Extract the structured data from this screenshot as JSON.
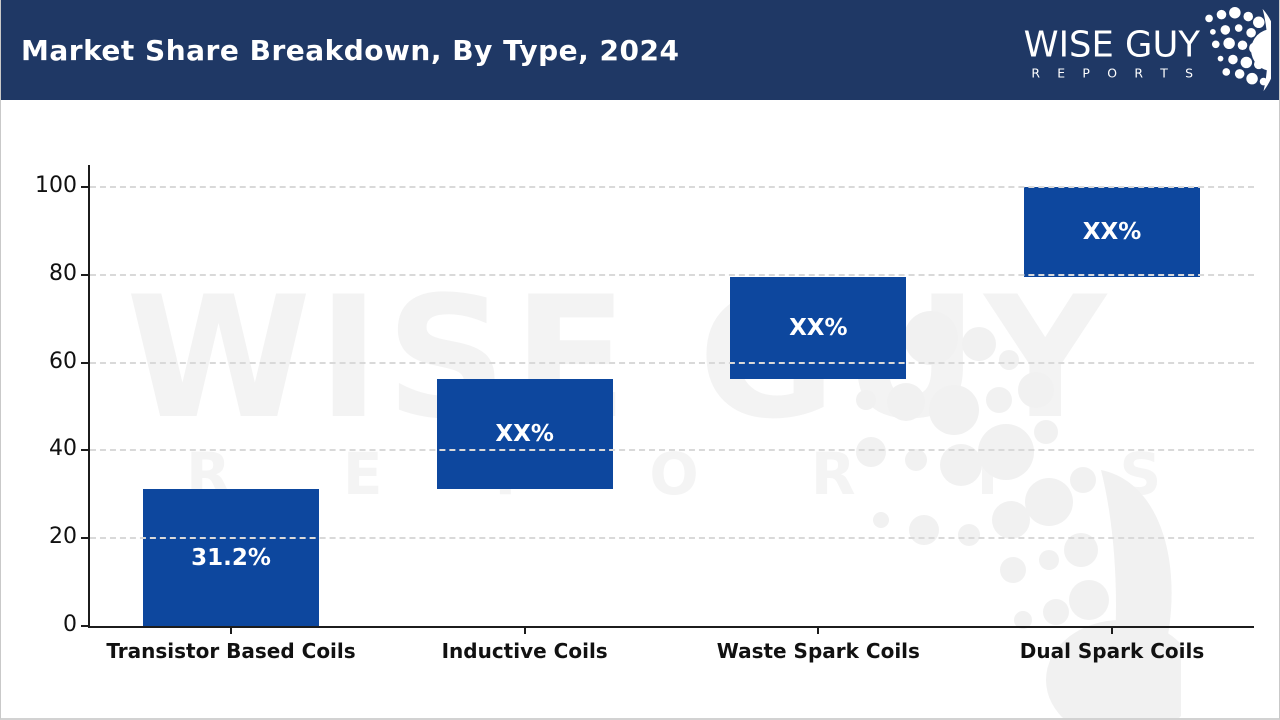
{
  "header": {
    "title": "Market Share Breakdown, By Type, 2024",
    "logo_line1": "WISE GUY",
    "logo_line2": "R E P O R T S"
  },
  "watermark": {
    "line1": "WISE GUY",
    "line2": "R E P O R T S"
  },
  "colors": {
    "header_bg": "#1f3865",
    "bar": "#0d479e",
    "axis": "#1c1c1c",
    "gridline": "#d9d9d9",
    "watermark": "#f3f3f3"
  },
  "chart_data": {
    "type": "bar",
    "subtype": "waterfall",
    "title": "Market Share Breakdown, By Type, 2024",
    "categories": [
      "Transistor Based Coils",
      "Inductive Coils",
      "Waste Spark Coils",
      "Dual Spark Coils"
    ],
    "bars": [
      {
        "category": "Transistor Based Coils",
        "start": 0,
        "end": 31.2,
        "label": "31.2%"
      },
      {
        "category": "Inductive Coils",
        "start": 31.2,
        "end": 56.3,
        "label": "XX%"
      },
      {
        "category": "Waste Spark Coils",
        "start": 56.3,
        "end": 79.4,
        "label": "XX%"
      },
      {
        "category": "Dual Spark Coils",
        "start": 79.4,
        "end": 100,
        "label": "XX%"
      }
    ],
    "yticks": [
      0,
      20,
      40,
      60,
      80,
      100
    ],
    "ylim": [
      0,
      104
    ],
    "xlabel": "",
    "ylabel": "",
    "grid": "horizontal-dashed-above-bars",
    "legend": "none"
  }
}
